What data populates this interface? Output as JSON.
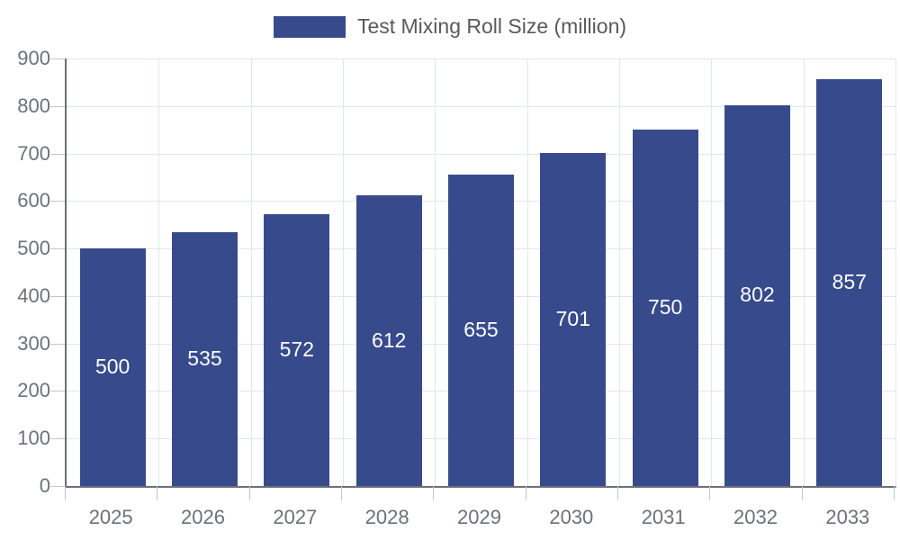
{
  "legend": {
    "label": "Test Mixing Roll Size (million)"
  },
  "chart_data": {
    "type": "bar",
    "title": "",
    "xlabel": "",
    "ylabel": "",
    "categories": [
      "2025",
      "2026",
      "2027",
      "2028",
      "2029",
      "2030",
      "2031",
      "2032",
      "2033"
    ],
    "series": [
      {
        "name": "Test Mixing Roll Size (million)",
        "values": [
          500,
          535,
          572,
          612,
          655,
          701,
          750,
          802,
          857
        ]
      }
    ],
    "value_labels_shown": true,
    "value_label_position": "inside-center",
    "ylim": [
      0,
      900
    ],
    "ytick_step": 100,
    "yticks": [
      0,
      100,
      200,
      300,
      400,
      500,
      600,
      700,
      800,
      900
    ],
    "grid": true,
    "legend_position": "top-center"
  },
  "colors": {
    "bar": "#374A8C",
    "bar_value_label": "#ffffff",
    "axis_line": "#6E7079",
    "axis_label": "#6E7079",
    "grid_line": "#E0E6F1",
    "tick_line": "#C3C6CC",
    "legend_text": "#595959",
    "background": "#ffffff"
  }
}
